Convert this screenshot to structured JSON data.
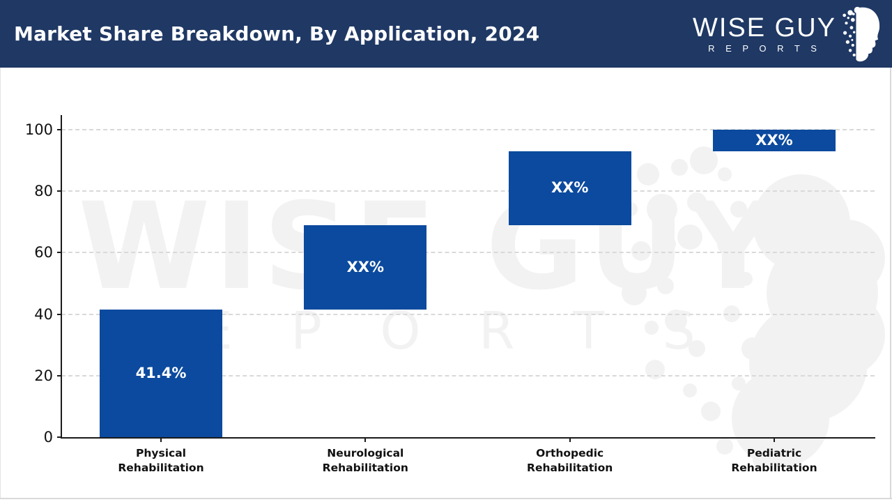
{
  "header": {
    "title": "Market Share Breakdown, By Application, 2024",
    "logo": {
      "line1": "WISE GUY",
      "line2": "R E P O R T S"
    }
  },
  "watermark": {
    "line1": "WISE GUY",
    "line2": "R E P O R T S"
  },
  "chart_data": {
    "type": "bar",
    "variant": "stacked-waterfall",
    "title": "Market Share Breakdown, By Application, 2024",
    "categories": [
      {
        "line1": "Physical",
        "line2": "Rehabilitation"
      },
      {
        "line1": "Neurological",
        "line2": "Rehabilitation"
      },
      {
        "line1": "Orthopedic",
        "line2": "Rehabilitation"
      },
      {
        "line1": "Pediatric",
        "line2": "Rehabilitation"
      }
    ],
    "bars": [
      {
        "label": "41.4%",
        "start": 0,
        "end": 41.4
      },
      {
        "label": "XX%",
        "start": 41.4,
        "end": 69
      },
      {
        "label": "XX%",
        "start": 69,
        "end": 93
      },
      {
        "label": "XX%",
        "start": 93,
        "end": 100
      }
    ],
    "yticks": [
      0,
      20,
      40,
      60,
      80,
      100
    ],
    "ylim": [
      0,
      104
    ],
    "grid": "horizontal-dashed",
    "legend": "none",
    "xlabel": "",
    "ylabel": ""
  },
  "colors": {
    "header_bg": "#1f3864",
    "bar": "#0b4a9e",
    "bar_label": "#ffffff",
    "grid": "#d9d9d9",
    "axis": "#1a1a1a",
    "watermark": "#f2f2f2",
    "frame": "#d9d9d9"
  }
}
